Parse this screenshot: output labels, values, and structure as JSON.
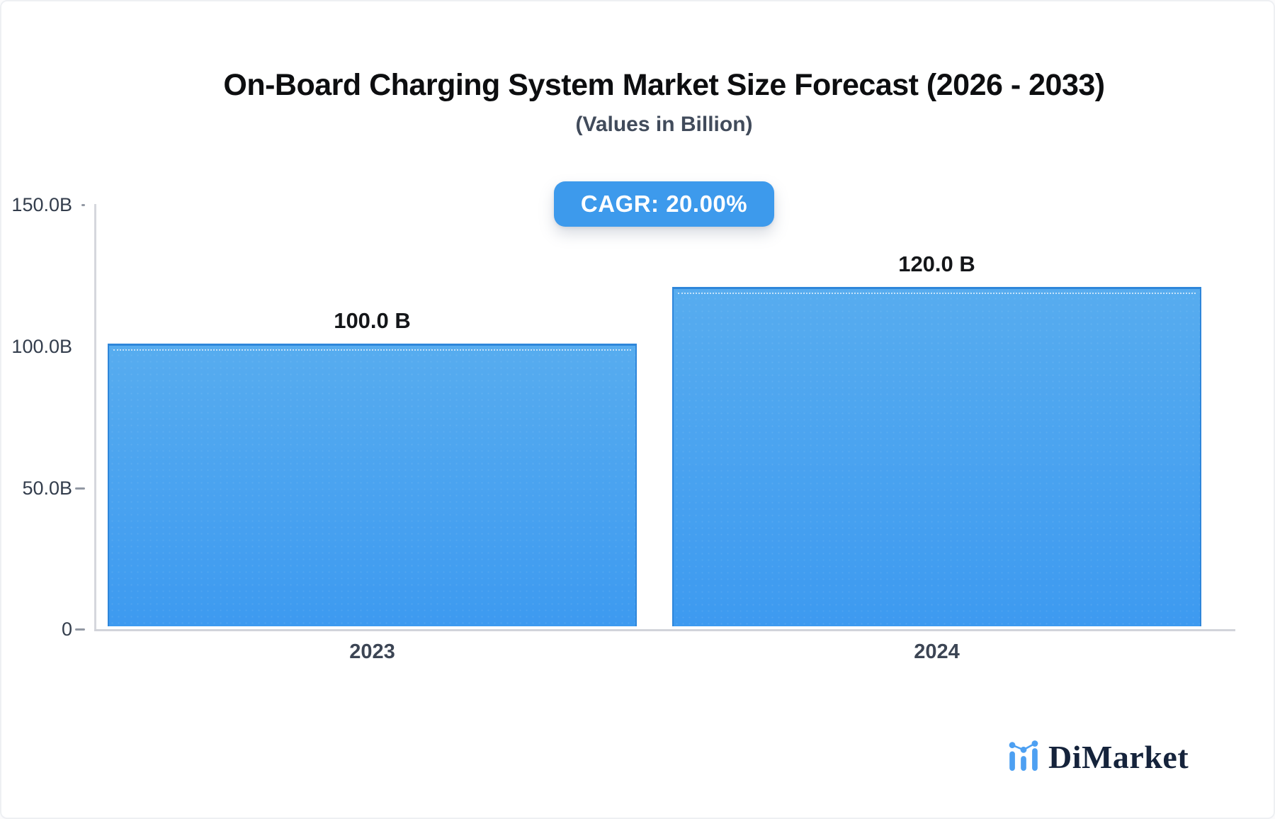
{
  "header": {
    "title": "On-Board Charging System Market Size Forecast (2026 - 2033)",
    "subtitle": "(Values in Billion)",
    "cagr_badge": "CAGR: 20.00%"
  },
  "chart_data": {
    "type": "bar",
    "categories": [
      "2023",
      "2024"
    ],
    "values": [
      100.0,
      120.0
    ],
    "value_labels": [
      "100.0 B",
      "120.0 B"
    ],
    "title": "On-Board Charging System Market Size Forecast (2026 - 2033)",
    "subtitle": "(Values in Billion)",
    "cagr": "20.00%",
    "unit": "Billion",
    "xlabel": "",
    "ylabel": "",
    "ylim": [
      0,
      150
    ],
    "ytick_labels": [
      "150.0B",
      "100.0B",
      "50.0B",
      "0"
    ],
    "grid": false,
    "legend": "none",
    "bar_fill_color": "#52A7F0",
    "bar_border_color": "#2E86DA",
    "badge_color": "#3D9AEC"
  },
  "footer": {
    "brand": "DiMarket",
    "brand_icon": "bar-chart-dots-logo-icon",
    "brand_color": "#15233B",
    "brand_icon_color": "#4DA0F2"
  }
}
